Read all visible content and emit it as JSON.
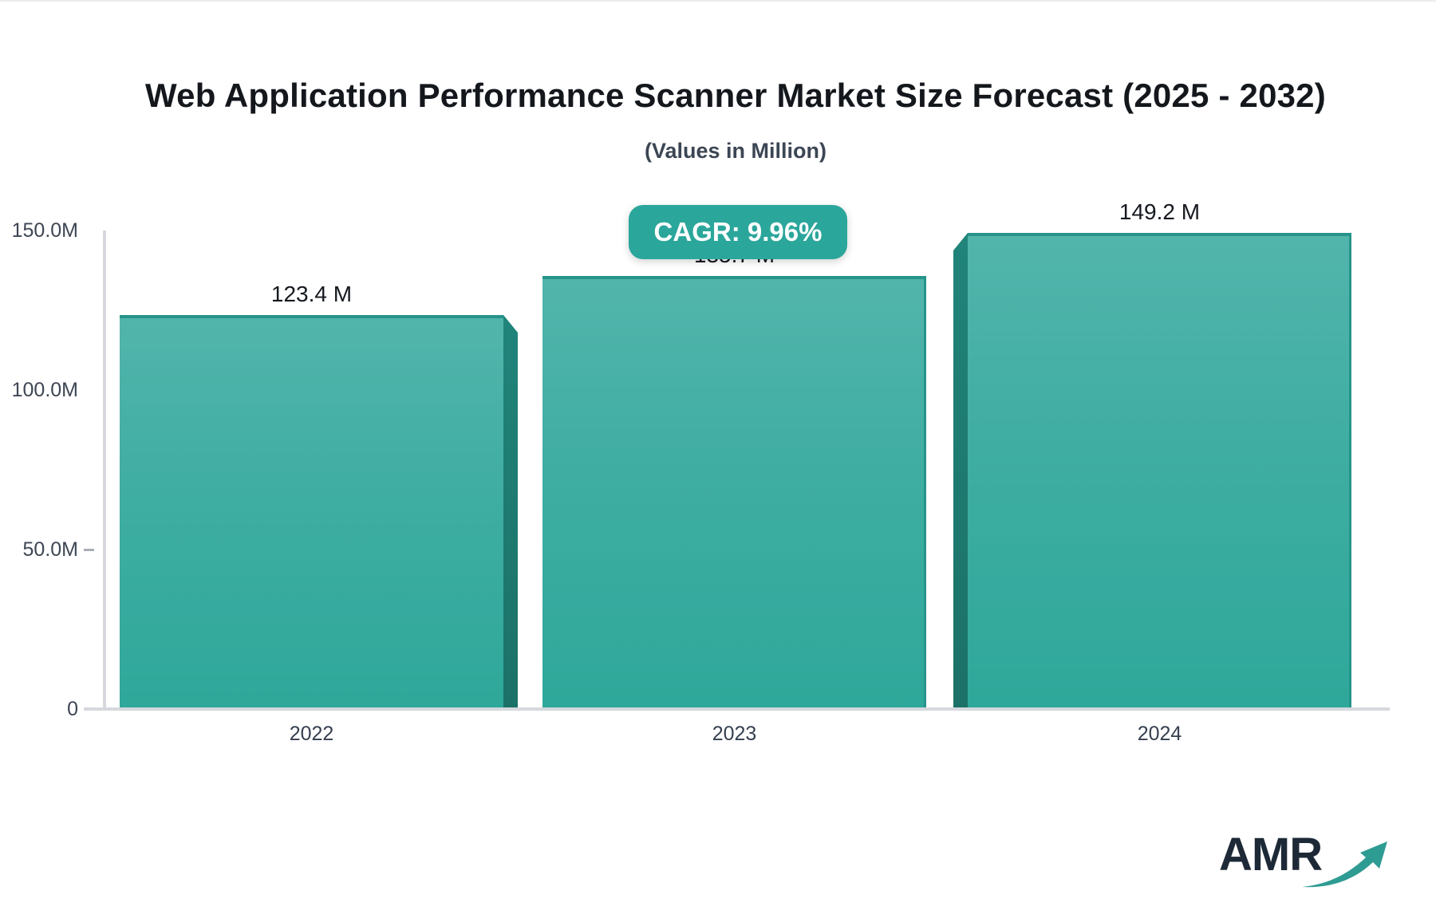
{
  "header": {
    "title": "Web Application Performance Scanner Market Size Forecast (2025 - 2032)",
    "subtitle": "(Values in Million)"
  },
  "badge": {
    "label": "CAGR: 9.96%",
    "bg_color": "#2BA69B",
    "text_color": "#FFFFFF"
  },
  "chart_data": {
    "type": "bar",
    "title": "Web Application Performance Scanner Market Size Forecast (2025 - 2032)",
    "subtitle": "(Values in Million)",
    "unit": "Million",
    "categories": [
      "2022",
      "2023",
      "2024"
    ],
    "values": [
      123.4,
      135.7,
      149.2
    ],
    "value_labels": [
      "123.4 M",
      "135.7 M",
      "149.2 M"
    ],
    "cagr_label": "CAGR: 9.96%",
    "ylim": [
      0,
      150
    ],
    "yticks": [
      {
        "label": "150.0M",
        "value": 150,
        "dash": false
      },
      {
        "label": "100.0M",
        "value": 100,
        "dash": false
      },
      {
        "label": "50.0M",
        "value": 50,
        "dash": true
      },
      {
        "label": "0",
        "value": 0,
        "dash": true
      }
    ],
    "grid": false,
    "legend": false,
    "bar_color_top": "#52B5AC",
    "bar_color_bottom": "#2EA89A",
    "bar_side_color": "#1E7A70",
    "axis_line_color": "#D6D8DE"
  },
  "logo": {
    "text": "AMR",
    "text_color": "#1D2936",
    "arrow_color": "#2F9C93"
  }
}
